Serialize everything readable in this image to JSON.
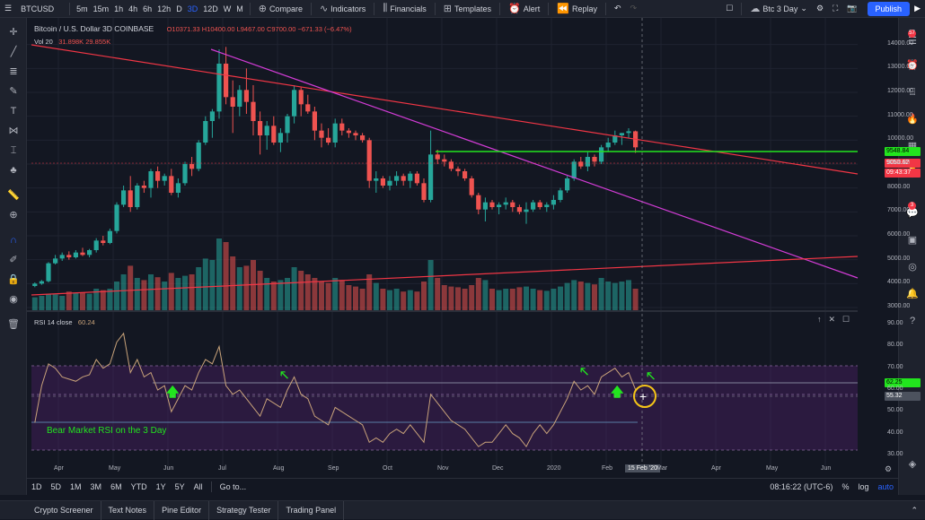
{
  "toolbar": {
    "symbol": "BTCUSD",
    "intervals": [
      "5m",
      "15m",
      "1h",
      "4h",
      "6h",
      "12h",
      "D",
      "3D",
      "12D",
      "W",
      "M"
    ],
    "active_interval": "3D",
    "compare": "Compare",
    "indicators": "Indicators",
    "financials": "Financials",
    "templates": "Templates",
    "alert": "Alert",
    "replay": "Replay",
    "layout_name": "Btc 3 Day",
    "publish": "Publish"
  },
  "right_badges": {
    "first": "57",
    "second": "3"
  },
  "legend": {
    "title": "Bitcoin / U.S. Dollar  3D  COINBASE",
    "ohlc": "O10371.33  H10400.00  L9467.00  C9700.00  −671.33 (−6.47%)",
    "vol_label": "Vol 20",
    "vol_values": "31.898K  29.855K",
    "rsi_label": "RSI 14 close",
    "rsi_value": "60.24"
  },
  "price_axis": [
    "14000.00",
    "13000.00",
    "12000.00",
    "11000.00",
    "10000.00",
    "9000.00",
    "8000.00",
    "7000.00",
    "6000.00",
    "5000.00",
    "4000.00",
    "3000.00"
  ],
  "price_labels": {
    "green": "9548.84",
    "red": "9050.62",
    "countdown": "09:43:37"
  },
  "rsi_axis": [
    "90.00",
    "80.00",
    "70.00",
    "60.00",
    "50.00",
    "40.00",
    "30.00"
  ],
  "rsi_labels": {
    "green": "62.25",
    "gray": "55.32"
  },
  "time_axis": [
    "Apr",
    "May",
    "Jun",
    "Jul",
    "Aug",
    "Sep",
    "Oct",
    "Nov",
    "Dec",
    "2020",
    "Feb",
    "Mar",
    "Apr",
    "May",
    "Jun"
  ],
  "crosshair_date": "15 Feb '20",
  "annotation": "Bear Market RSI on the 3 Day",
  "bottom": {
    "ranges": [
      "1D",
      "5D",
      "1M",
      "3M",
      "6M",
      "YTD",
      "1Y",
      "5Y",
      "All"
    ],
    "goto": "Go to...",
    "time": "08:16:22 (UTC-6)",
    "percent": "%",
    "log": "log",
    "auto": "auto"
  },
  "tabs": [
    "Crypto Screener",
    "Text Notes",
    "Pine Editor",
    "Strategy Tester",
    "Trading Panel"
  ],
  "colors": {
    "up": "#26a69a",
    "down": "#ef5350",
    "trend_red": "#f23645",
    "trend_magenta": "#d33cd6",
    "level_green": "#22e51e",
    "rsi_line": "#c9a37a",
    "rsi_band": "#4a2063",
    "accent": "#2962ff"
  },
  "chart_data": {
    "type": "candlestick",
    "price_range": [
      3000,
      15000
    ],
    "rsi_range": [
      25,
      95
    ],
    "candles": [
      [
        3900,
        4050,
        3850,
        4000
      ],
      [
        4000,
        4150,
        3950,
        4100
      ],
      [
        4100,
        4900,
        4050,
        4850
      ],
      [
        4850,
        5200,
        4800,
        5050
      ],
      [
        5050,
        5300,
        4950,
        5200
      ],
      [
        5200,
        5350,
        5000,
        5100
      ],
      [
        5100,
        5400,
        5050,
        5300
      ],
      [
        5300,
        5500,
        5150,
        5200
      ],
      [
        5200,
        5450,
        5100,
        5400
      ],
      [
        5400,
        5900,
        5300,
        5800
      ],
      [
        5800,
        6000,
        5600,
        5700
      ],
      [
        5700,
        6300,
        5650,
        6200
      ],
      [
        6200,
        7400,
        6100,
        7300
      ],
      [
        7300,
        8100,
        7200,
        7900
      ],
      [
        7900,
        8500,
        7000,
        7200
      ],
      [
        7200,
        8200,
        7100,
        8100
      ],
      [
        8100,
        8300,
        7800,
        8000
      ],
      [
        8000,
        8800,
        7600,
        8700
      ],
      [
        8700,
        8900,
        8000,
        8300
      ],
      [
        8300,
        8600,
        8100,
        8500
      ],
      [
        8500,
        8800,
        7700,
        7800
      ],
      [
        7800,
        8400,
        7600,
        8200
      ],
      [
        8200,
        9100,
        8100,
        9000
      ],
      [
        9000,
        9300,
        8500,
        8800
      ],
      [
        8800,
        10000,
        8700,
        9900
      ],
      [
        9900,
        11000,
        9800,
        10800
      ],
      [
        10800,
        11300,
        10100,
        11200
      ],
      [
        11200,
        13800,
        10900,
        13200
      ],
      [
        13200,
        13900,
        11500,
        11800
      ],
      [
        11800,
        12500,
        10300,
        11400
      ],
      [
        11400,
        12300,
        11000,
        12100
      ],
      [
        12100,
        13000,
        11100,
        11600
      ],
      [
        11600,
        12300,
        10200,
        10800
      ],
      [
        10800,
        11200,
        9400,
        10200
      ],
      [
        10200,
        10800,
        9600,
        10600
      ],
      [
        10600,
        11000,
        9800,
        9900
      ],
      [
        9900,
        10500,
        9500,
        10300
      ],
      [
        10300,
        11100,
        9900,
        11000
      ],
      [
        11000,
        12300,
        10700,
        12100
      ],
      [
        12100,
        12200,
        11000,
        11500
      ],
      [
        11500,
        11900,
        11100,
        11200
      ],
      [
        11200,
        11400,
        10000,
        10400
      ],
      [
        10400,
        10700,
        9700,
        10100
      ],
      [
        10100,
        10500,
        9800,
        9900
      ],
      [
        9900,
        10900,
        9700,
        10700
      ],
      [
        10700,
        10900,
        10200,
        10400
      ],
      [
        10400,
        10500,
        10100,
        10300
      ],
      [
        10300,
        10400,
        10000,
        10200
      ],
      [
        10200,
        10300,
        9900,
        10000
      ],
      [
        10000,
        10100,
        8000,
        8300
      ],
      [
        8300,
        8700,
        7800,
        8400
      ],
      [
        8400,
        8500,
        8000,
        8100
      ],
      [
        8100,
        8500,
        7900,
        8300
      ],
      [
        8300,
        8700,
        8100,
        8500
      ],
      [
        8500,
        8600,
        8100,
        8300
      ],
      [
        8300,
        8700,
        8000,
        8600
      ],
      [
        8600,
        8700,
        8100,
        8200
      ],
      [
        8200,
        8400,
        7400,
        7500
      ],
      [
        7500,
        10400,
        7400,
        9400
      ],
      [
        9400,
        9600,
        9000,
        9200
      ],
      [
        9200,
        9400,
        8900,
        9100
      ],
      [
        9100,
        9200,
        8700,
        8800
      ],
      [
        8800,
        8900,
        8500,
        8700
      ],
      [
        8700,
        8800,
        8300,
        8400
      ],
      [
        8400,
        8500,
        7600,
        7700
      ],
      [
        7700,
        7800,
        6900,
        7100
      ],
      [
        7100,
        7600,
        6600,
        7400
      ],
      [
        7400,
        7500,
        7100,
        7200
      ],
      [
        7200,
        7400,
        6900,
        7300
      ],
      [
        7300,
        7600,
        7100,
        7400
      ],
      [
        7400,
        7500,
        7000,
        7200
      ],
      [
        7200,
        7300,
        6900,
        7000
      ],
      [
        7000,
        7400,
        6500,
        7100
      ],
      [
        7100,
        7500,
        7000,
        7400
      ],
      [
        7400,
        7500,
        7100,
        7200
      ],
      [
        7200,
        7400,
        7000,
        7300
      ],
      [
        7300,
        7700,
        7100,
        7500
      ],
      [
        7500,
        8000,
        7400,
        7900
      ],
      [
        7900,
        8500,
        7800,
        8400
      ],
      [
        8400,
        9200,
        8300,
        9100
      ],
      [
        9100,
        9300,
        8800,
        8900
      ],
      [
        8900,
        9500,
        8700,
        9300
      ],
      [
        9300,
        9400,
        8900,
        9100
      ],
      [
        9100,
        9800,
        9000,
        9700
      ],
      [
        9700,
        10100,
        9500,
        9900
      ],
      [
        9900,
        10400,
        9800,
        10200
      ],
      [
        10200,
        10300,
        9800,
        10300
      ],
      [
        10300,
        10500,
        10100,
        10371
      ],
      [
        10371,
        10400,
        9467,
        9700
      ]
    ],
    "volume": [
      0.18,
      0.2,
      0.22,
      0.22,
      0.2,
      0.26,
      0.24,
      0.25,
      0.23,
      0.3,
      0.28,
      0.3,
      0.4,
      0.5,
      0.62,
      0.45,
      0.42,
      0.5,
      0.46,
      0.4,
      0.52,
      0.45,
      0.48,
      0.5,
      0.6,
      0.72,
      0.7,
      1.0,
      0.95,
      0.75,
      0.6,
      0.62,
      0.7,
      0.55,
      0.45,
      0.4,
      0.42,
      0.45,
      0.6,
      0.55,
      0.5,
      0.45,
      0.4,
      0.38,
      0.45,
      0.42,
      0.35,
      0.33,
      0.3,
      0.5,
      0.38,
      0.3,
      0.28,
      0.3,
      0.26,
      0.28,
      0.26,
      0.4,
      0.7,
      0.45,
      0.35,
      0.33,
      0.32,
      0.3,
      0.35,
      0.45,
      0.42,
      0.3,
      0.28,
      0.3,
      0.3,
      0.32,
      0.33,
      0.3,
      0.28,
      0.27,
      0.3,
      0.33,
      0.38,
      0.42,
      0.4,
      0.38,
      0.36,
      0.45,
      0.4,
      0.38,
      0.4,
      0.42,
      0.3
    ],
    "rsi": [
      45,
      62,
      72,
      70,
      66,
      65,
      64,
      66,
      67,
      74,
      70,
      72,
      82,
      86,
      68,
      74,
      66,
      68,
      60,
      62,
      50,
      56,
      62,
      60,
      68,
      74,
      72,
      80,
      62,
      58,
      60,
      56,
      52,
      48,
      56,
      54,
      52,
      60,
      66,
      58,
      56,
      48,
      46,
      44,
      52,
      50,
      48,
      46,
      44,
      36,
      38,
      36,
      40,
      42,
      40,
      44,
      40,
      36,
      58,
      54,
      50,
      46,
      44,
      42,
      38,
      34,
      36,
      36,
      40,
      44,
      40,
      38,
      34,
      40,
      44,
      40,
      44,
      50,
      56,
      64,
      60,
      62,
      58,
      66,
      68,
      70,
      66,
      68,
      60.24
    ]
  }
}
